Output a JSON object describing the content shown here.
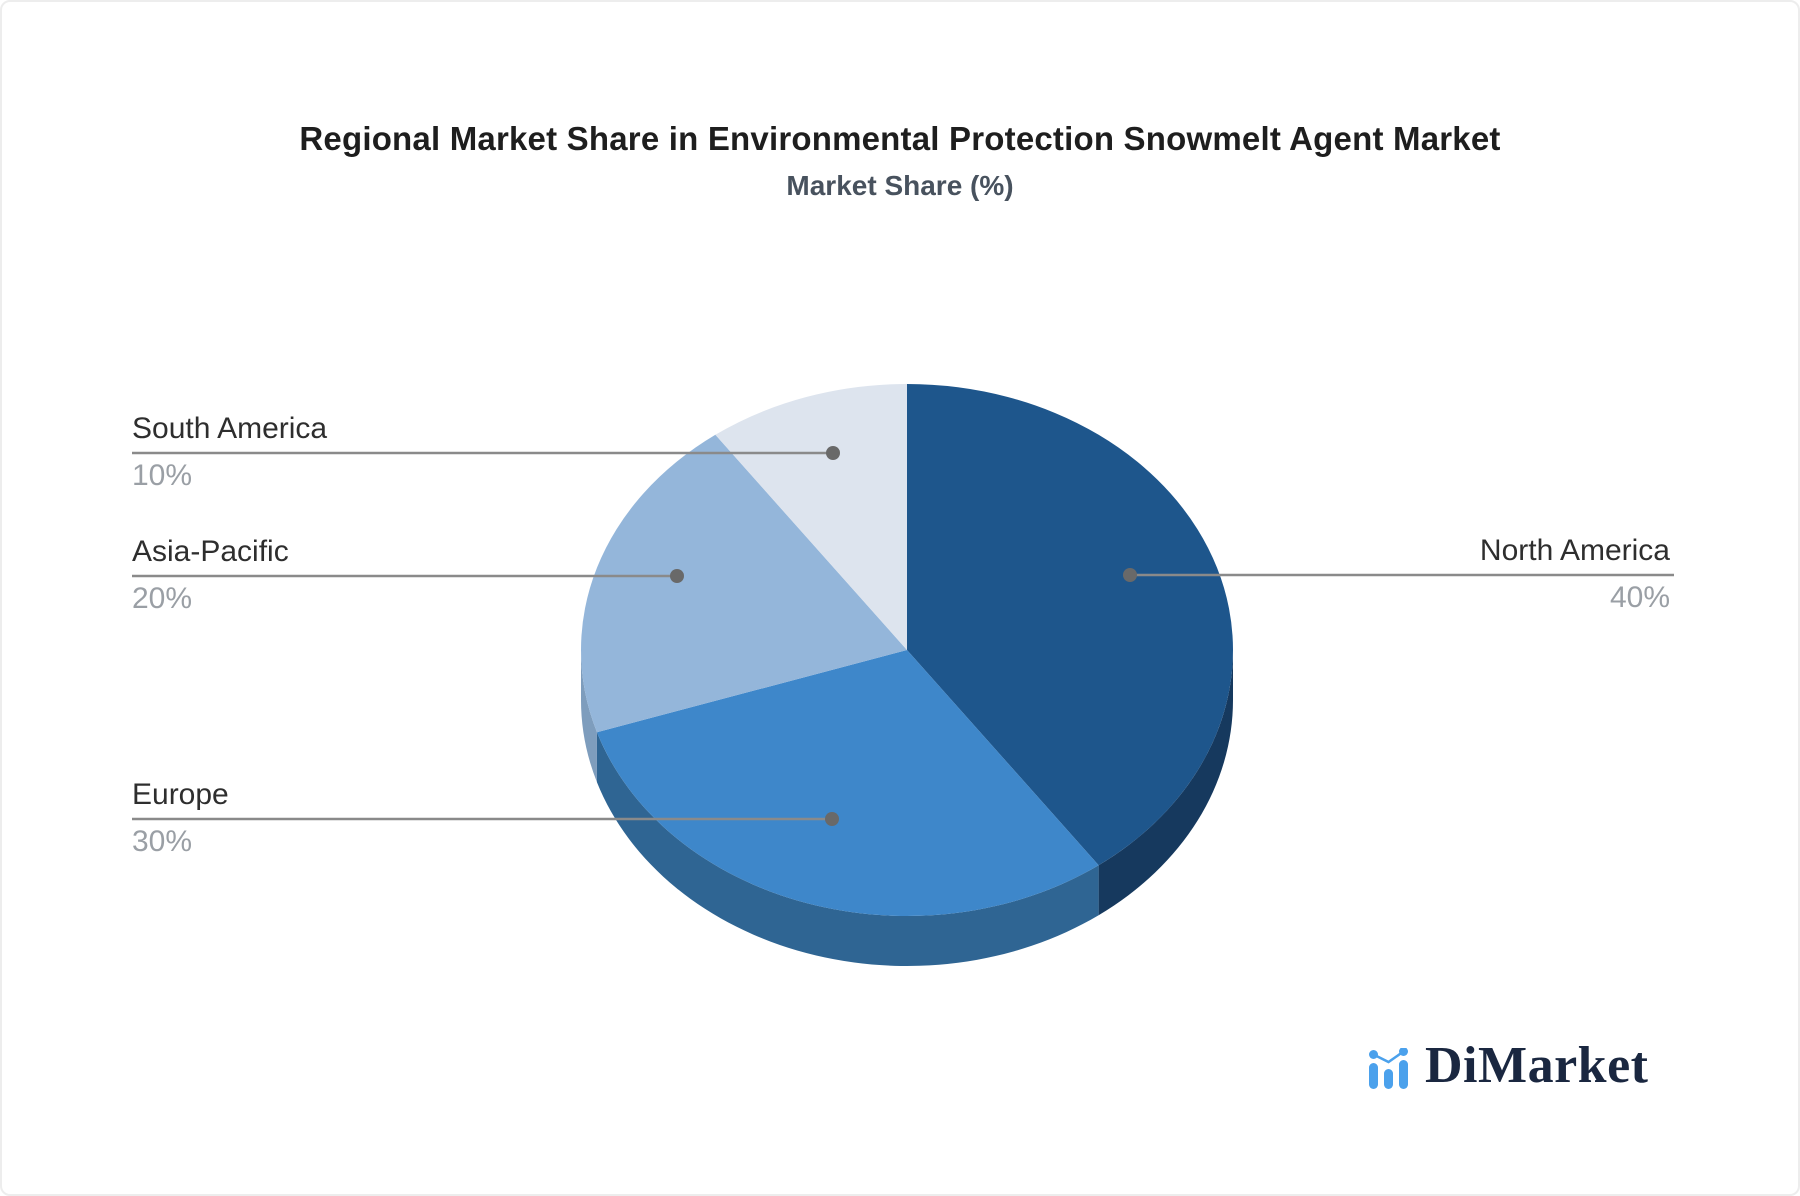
{
  "header": {
    "title": "Regional Market Share in Environmental Protection Snowmelt Agent Market",
    "subtitle": "Market Share (%)"
  },
  "chart_data": {
    "type": "pie",
    "title": "Regional Market Share in Environmental Protection Snowmelt Agent Market",
    "subtitle": "Market Share (%)",
    "unit": "%",
    "effect": "3d",
    "start_angle_clockwise_from_top": 0,
    "slices": [
      {
        "label": "North America",
        "value": 40,
        "pct_label": "40%",
        "color": "#1e568c",
        "side_color": "#16395e"
      },
      {
        "label": "Europe",
        "value": 30,
        "pct_label": "30%",
        "color": "#3e87ca",
        "side_color": "#2f6593"
      },
      {
        "label": "Asia-Pacific",
        "value": 20,
        "pct_label": "20%",
        "color": "#94b6da",
        "side_color": "#7e9dbd"
      },
      {
        "label": "South America",
        "value": 10,
        "pct_label": "10%",
        "color": "#dde4ee",
        "side_color": "#c2cbd9"
      }
    ],
    "style": {
      "leader_line_color": "#8a8a8a",
      "leader_dot_color": "#696969",
      "label_text_color": "#2e2e2e",
      "pct_text_color": "#9a9fa5"
    }
  },
  "logo": {
    "text": "DiMarket",
    "icon": "mini-bar-chart-logo-icon",
    "accent_color": "#4ba1ec",
    "text_color": "#1a2740"
  }
}
